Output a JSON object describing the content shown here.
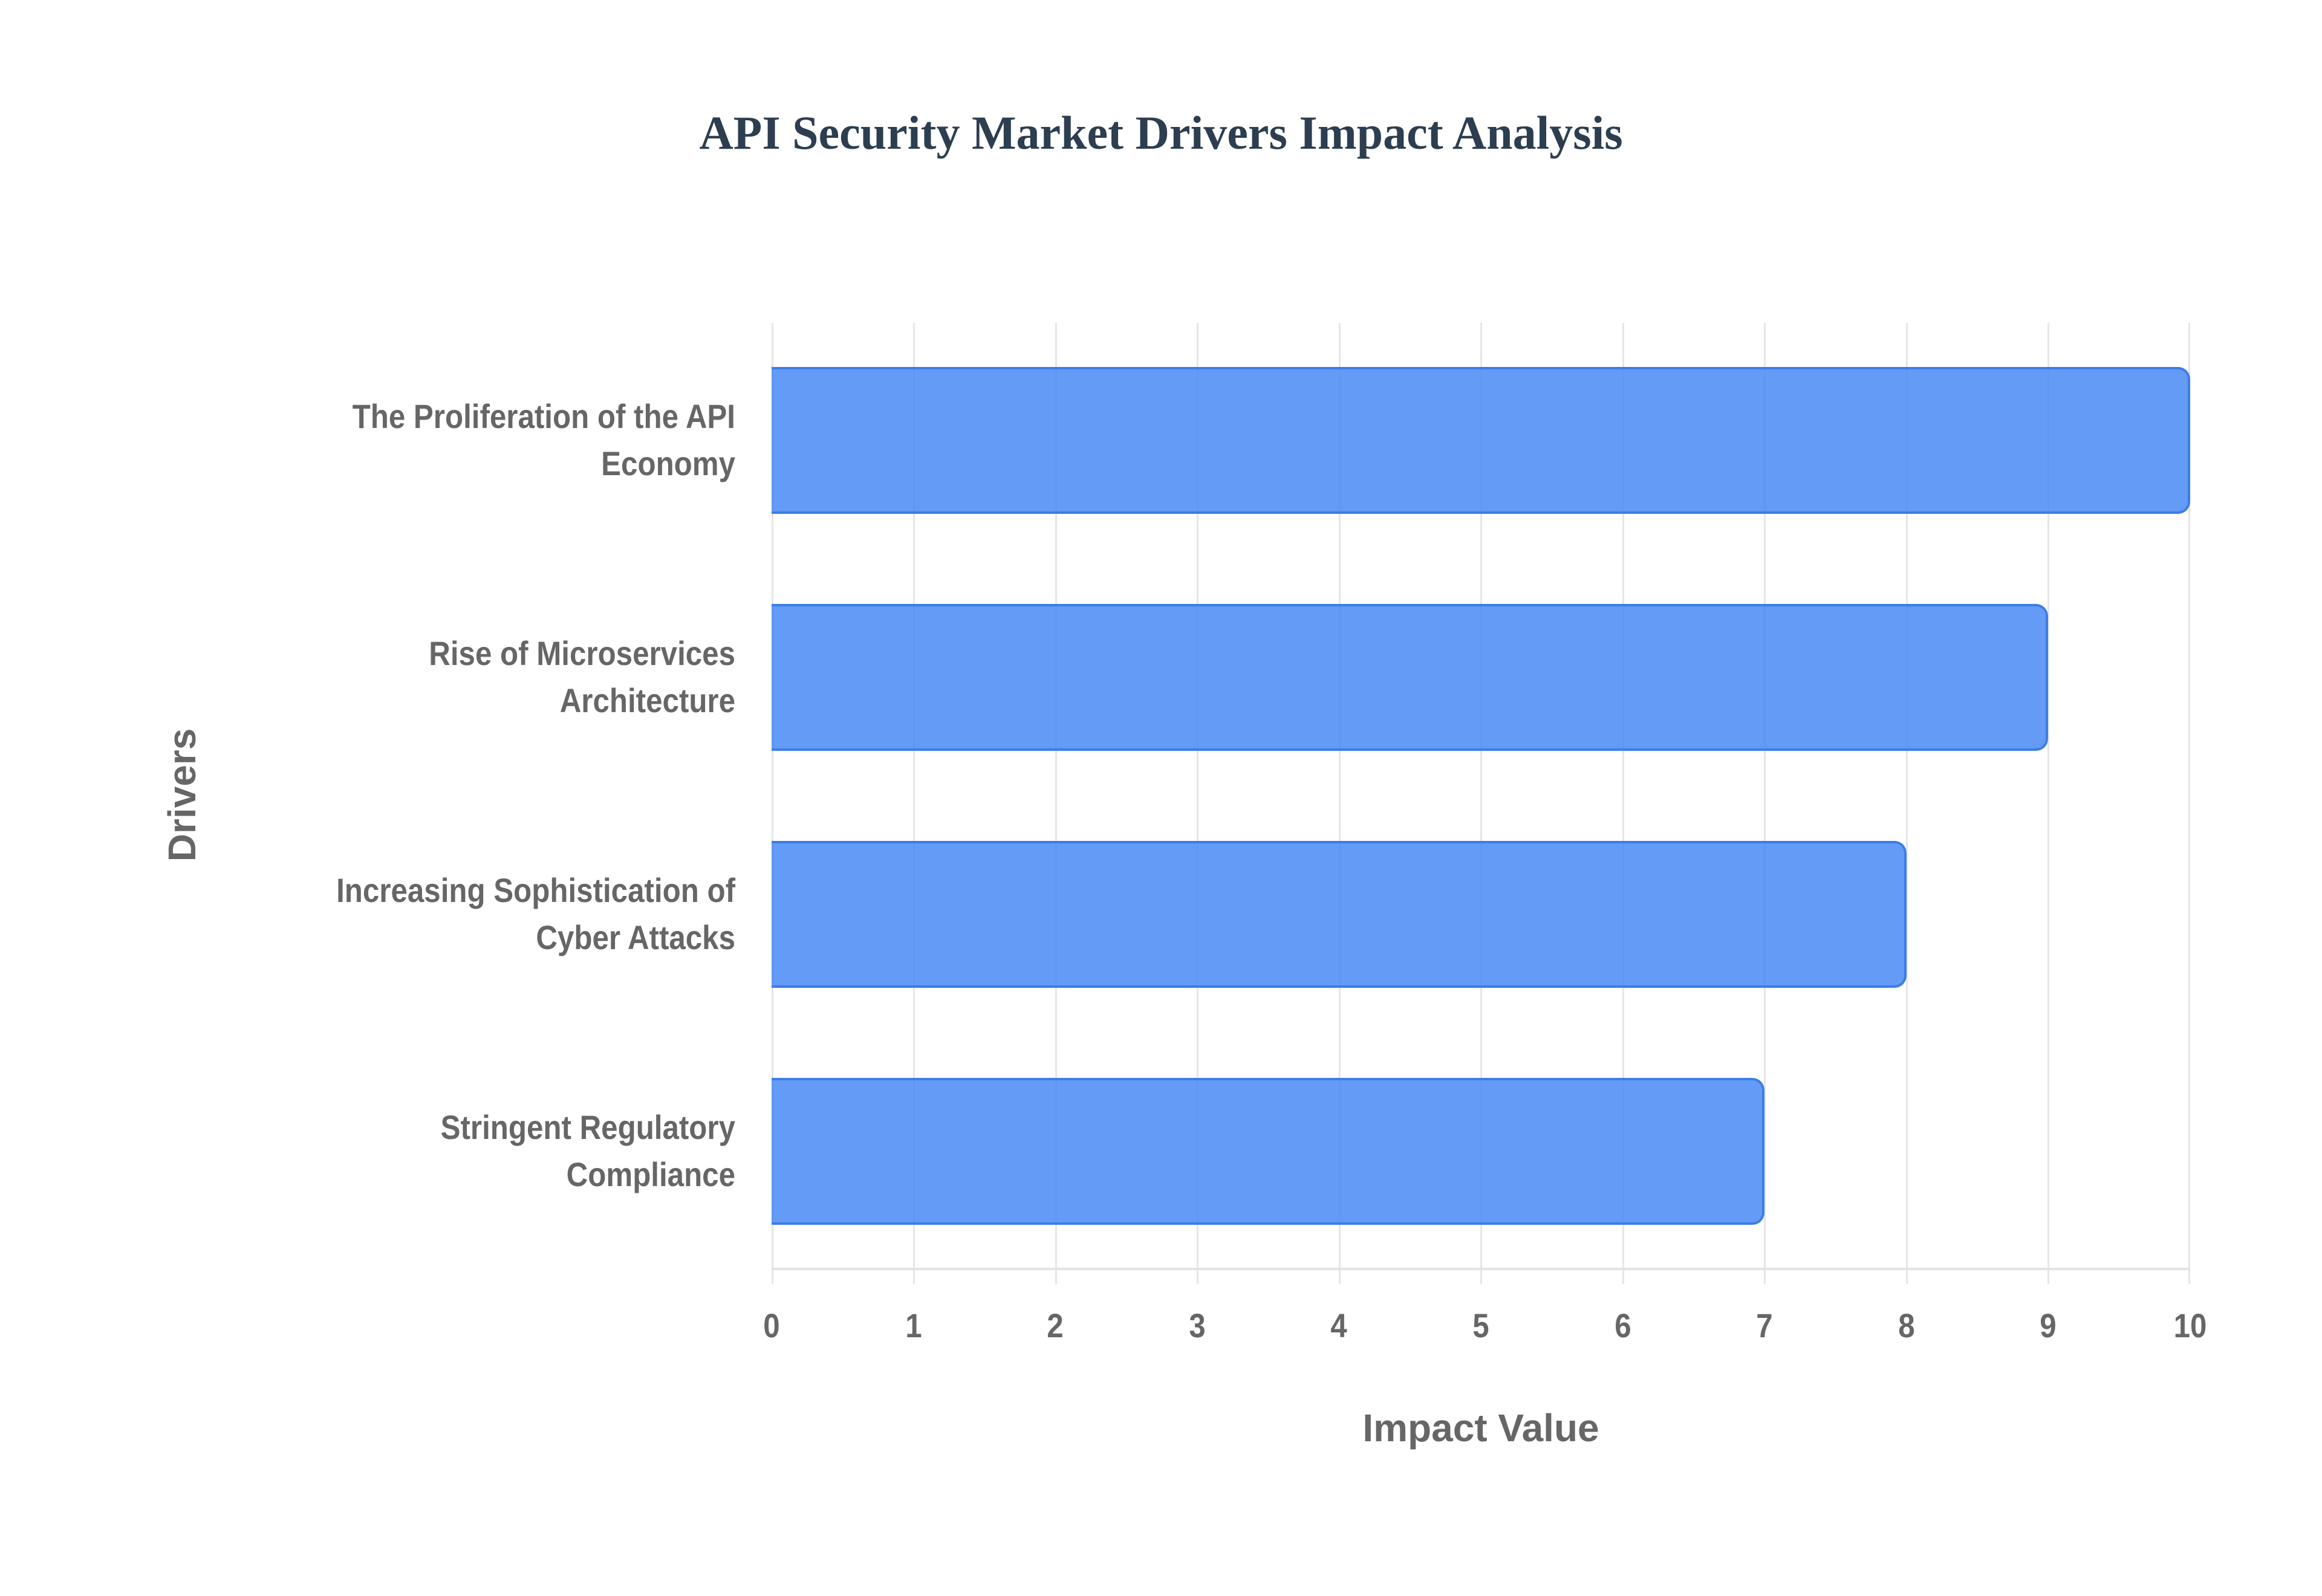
{
  "chart_data": {
    "type": "bar",
    "orientation": "horizontal",
    "title": "API Security Market Drivers Impact Analysis",
    "xlabel": "Impact Value",
    "ylabel": "Drivers",
    "categories": [
      "The Proliferation of the API Economy",
      "Rise of Microservices Architecture",
      "Increasing Sophistication of Cyber Attacks",
      "Stringent Regulatory Compliance"
    ],
    "category_lines": [
      [
        "The Proliferation of the API",
        "Economy"
      ],
      [
        "Rise of Microservices",
        "Architecture"
      ],
      [
        "Increasing Sophistication of",
        "Cyber Attacks"
      ],
      [
        "Stringent Regulatory",
        "Compliance"
      ]
    ],
    "values": [
      10,
      9,
      8,
      7
    ],
    "xlim": [
      0,
      10
    ],
    "xticks": [
      "0",
      "1",
      "2",
      "3",
      "4",
      "5",
      "6",
      "7",
      "8",
      "9",
      "10"
    ],
    "grid": true,
    "legend": null,
    "bar_color": "#4285f4",
    "bar_border_color": "#3b7de8"
  }
}
